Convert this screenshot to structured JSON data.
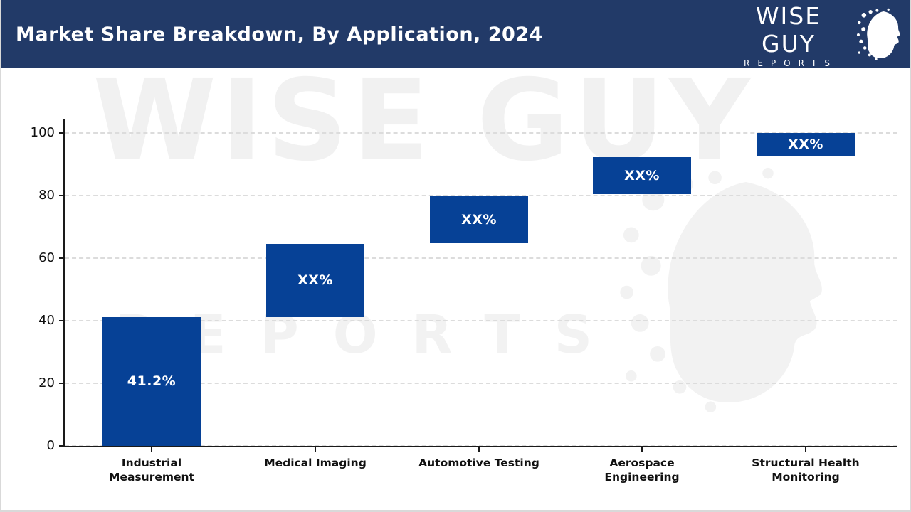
{
  "header": {
    "title": "Market Share Breakdown, By Application, 2024",
    "logo": {
      "line1": "WISE GUY",
      "line2": "REPORTS"
    }
  },
  "watermark": {
    "line1": "WISE GUY",
    "line2": "REPORTS"
  },
  "colors": {
    "header_bg": "#223a68",
    "bar": "#064196",
    "bar_label": "#ffffff",
    "axis": "#1a1a1a",
    "gridline": "#dcdcdc",
    "watermark": "#f1f1f1",
    "frame_border": "#d9d9d9",
    "title_text": "#ffffff"
  },
  "chart_data": {
    "type": "bar",
    "subtype": "waterfall",
    "title": "Market Share Breakdown, By Application, 2024",
    "xlabel": "",
    "ylabel": "",
    "ylim": [
      0,
      100
    ],
    "y_ticks": [
      0,
      20,
      40,
      60,
      80,
      100
    ],
    "grid": "horizontal-dashed",
    "legend": "none",
    "categories": [
      "Industrial Measurement",
      "Medical Imaging",
      "Automotive Testing",
      "Aerospace Engineering",
      "Structural Health Monitoring"
    ],
    "category_label_lines": [
      "Industrial\nMeasurement",
      "Medical Imaging",
      "Automotive Testing",
      "Aerospace\nEngineering",
      "Structural Health\nMonitoring"
    ],
    "segments": [
      {
        "category": "Industrial Measurement",
        "start": 0,
        "end": 41.2,
        "label": "41.2%"
      },
      {
        "category": "Medical Imaging",
        "start": 41.2,
        "end": 64.5,
        "label": "XX%"
      },
      {
        "category": "Automotive Testing",
        "start": 64.8,
        "end": 79.8,
        "label": "XX%"
      },
      {
        "category": "Aerospace Engineering",
        "start": 80.4,
        "end": 92.3,
        "label": "XX%"
      },
      {
        "category": "Structural Health Monitoring",
        "start": 92.8,
        "end": 100,
        "label": "XX%"
      }
    ]
  }
}
